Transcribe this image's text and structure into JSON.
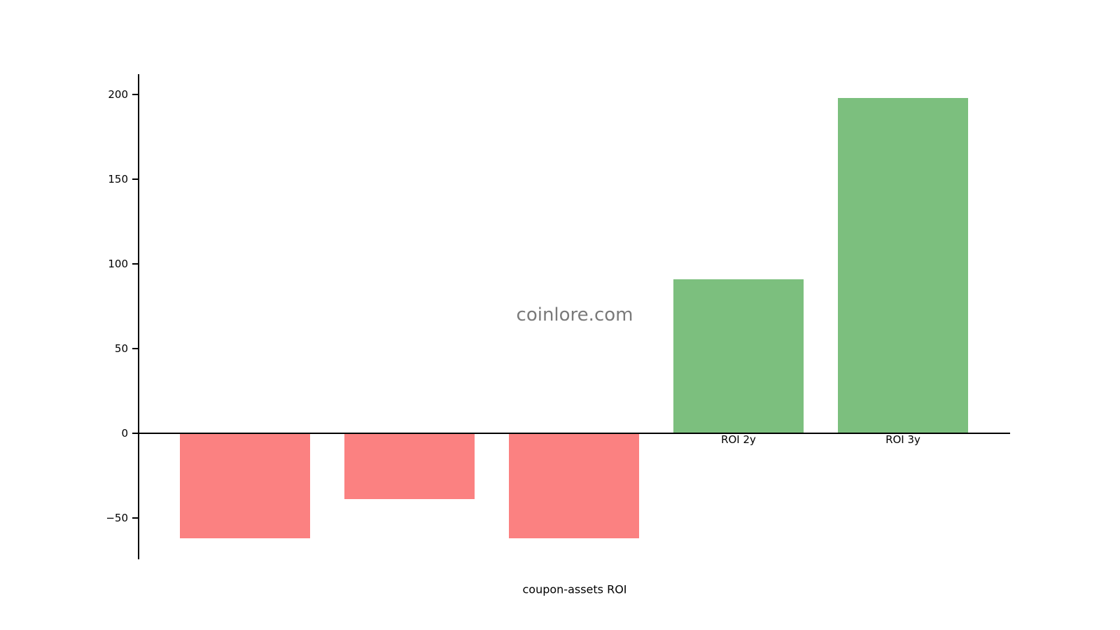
{
  "page": {
    "background": "#ffffff"
  },
  "watermark": {
    "text": "coinlore.com",
    "color": "#7a7a7a"
  },
  "chart_data": {
    "type": "bar",
    "title": "",
    "xlabel": "coupon-assets ROI",
    "ylabel": "",
    "categories": [
      "",
      "",
      "",
      "ROI 2y",
      "ROI 3y"
    ],
    "values": [
      -62,
      -39,
      -62,
      91,
      198
    ],
    "bar_colors": [
      "#fb8181",
      "#fb8181",
      "#fb8181",
      "#7cbf7e",
      "#7cbf7e"
    ],
    "negative_color": "#fb8181",
    "positive_color": "#7cbf7e",
    "yticks": [
      200,
      150,
      100,
      50,
      0,
      -50
    ],
    "ytick_labels": [
      "200",
      "150",
      "100",
      "50",
      "0",
      "−50"
    ],
    "ylim": [
      -74,
      212
    ],
    "grid": false,
    "legend": null,
    "axis_color": "#000000",
    "tick_label_color": "#000000"
  }
}
